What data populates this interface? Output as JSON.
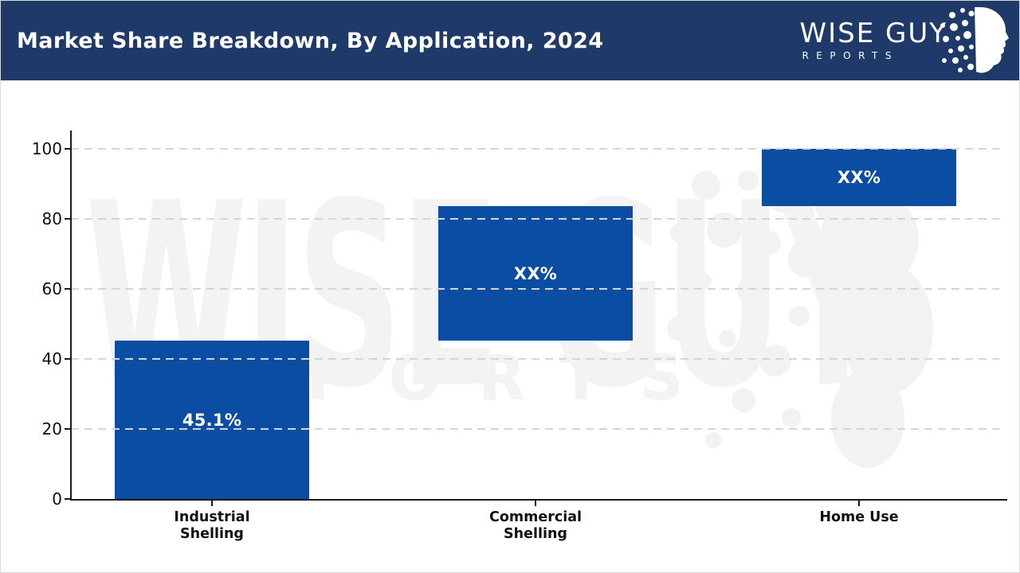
{
  "header": {
    "title": "Market Share Breakdown, By Application, 2024",
    "logo": {
      "brand": "WISE GUY",
      "sub": "REPORTS"
    }
  },
  "watermark": {
    "brand": "WISE GUY",
    "sub": "REPORTS"
  },
  "chart_data": {
    "type": "bar",
    "variant": "floating-waterfall",
    "title": "Market Share Breakdown, By Application, 2024",
    "categories": [
      "Industrial Shelling",
      "Commercial Shelling",
      "Home Use"
    ],
    "categories_lines": [
      [
        "Industrial",
        "Shelling"
      ],
      [
        "Commercial",
        "Shelling"
      ],
      [
        "Home Use"
      ]
    ],
    "segments": [
      {
        "category": "Industrial Shelling",
        "start": 0,
        "end": 45.1,
        "label": "45.1%"
      },
      {
        "category": "Commercial Shelling",
        "start": 45.1,
        "end": 83.5,
        "label": "XX%"
      },
      {
        "category": "Home Use",
        "start": 83.5,
        "end": 100,
        "label": "XX%"
      }
    ],
    "ylim": [
      0,
      100
    ],
    "yticks": [
      0,
      20,
      40,
      60,
      80,
      100
    ],
    "grid": {
      "horizontal": true,
      "style": "dashed",
      "color": "#d5d5d5",
      "drawn_over_bars": true
    },
    "legend": "none",
    "bar_color": "#0b4da2",
    "bar_label_color": "#ffffff",
    "axis_color": "#1a1a1a"
  },
  "colors": {
    "header_bg": "#1f3a68",
    "page_bg": "#ffffff",
    "watermark": "#f3f3f3",
    "border": "#d9d9d9"
  }
}
